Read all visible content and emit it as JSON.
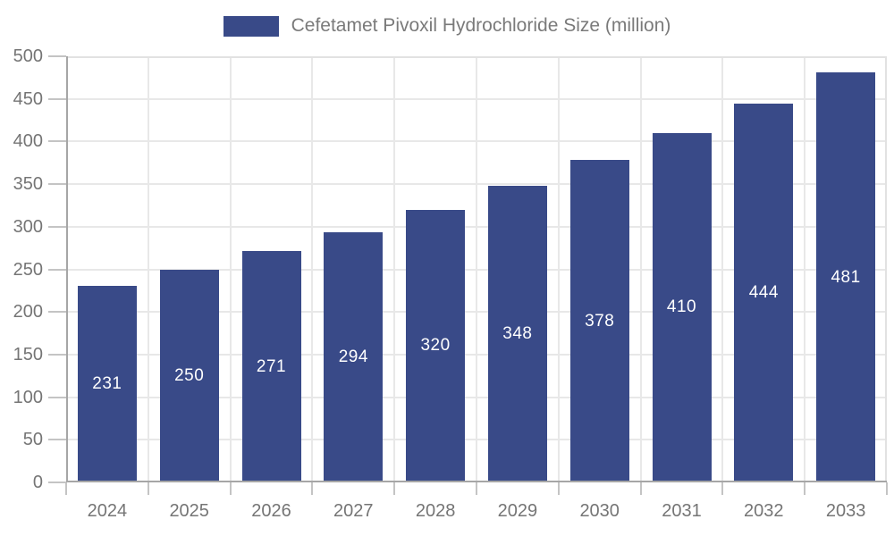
{
  "legend": {
    "label": "Cefetamet Pivoxil Hydrochloride Size (million)"
  },
  "colors": {
    "bar": "#394A88",
    "grid": "#e8e8e8",
    "frame": "#e2e2e2",
    "axis": "#a6a6a6",
    "tick": "#c4c4c4",
    "tick_label": "#757575",
    "value_label": "#ffffff",
    "background": "#ffffff"
  },
  "chart_data": {
    "type": "bar",
    "title": "Cefetamet Pivoxil Hydrochloride Size (million)",
    "categories": [
      "2024",
      "2025",
      "2026",
      "2027",
      "2028",
      "2029",
      "2030",
      "2031",
      "2032",
      "2033"
    ],
    "values": [
      231,
      250,
      271,
      294,
      320,
      348,
      378,
      410,
      444,
      481
    ],
    "value_labels": [
      "231",
      "250",
      "271",
      "294",
      "320",
      "348",
      "378",
      "410",
      "444",
      "481"
    ],
    "xlabel": "",
    "ylabel": "",
    "ylim": [
      0,
      500
    ],
    "yticks": [
      0,
      50,
      100,
      150,
      200,
      250,
      300,
      350,
      400,
      450,
      500
    ],
    "grid": true,
    "legend_position": "top-center",
    "bar_labels_inside": true,
    "bar_label_position": "center"
  }
}
